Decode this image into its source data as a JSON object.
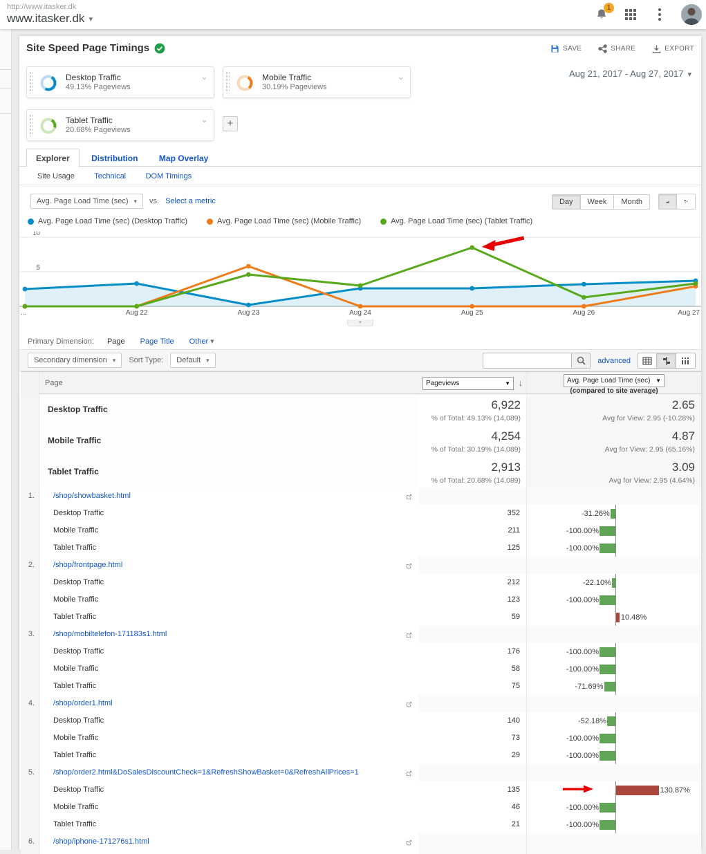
{
  "topbar": {
    "url": "http://www.itasker.dk",
    "account": "www.itasker.dk",
    "notification_count": "1"
  },
  "report": {
    "title": "Site Speed Page Timings",
    "actions": [
      "SAVE",
      "SHARE",
      "EXPORT"
    ],
    "date_range": "Aug 21, 2017 - Aug 27, 2017"
  },
  "segments": {
    "cards": [
      {
        "name": "Desktop Traffic",
        "subtitle": "49.13% Pageviews",
        "pct": 49.13,
        "color": "#058dc7",
        "track": "#b9dcef"
      },
      {
        "name": "Mobile Traffic",
        "subtitle": "30.19% Pageviews",
        "pct": 30.19,
        "color": "#ee7c1a",
        "track": "#f8d9ba"
      },
      {
        "name": "Tablet Traffic",
        "subtitle": "20.68% Pageviews",
        "pct": 20.68,
        "color": "#5aa81c",
        "track": "#cde7ba"
      }
    ],
    "add_label": "+"
  },
  "tabs": {
    "items": [
      {
        "label": "Explorer",
        "active": true
      },
      {
        "label": "Distribution"
      },
      {
        "label": "Map Overlay"
      }
    ]
  },
  "subtabs": {
    "items": [
      {
        "label": "Site Usage",
        "active": true
      },
      {
        "label": "Technical"
      },
      {
        "label": "DOM Timings"
      }
    ]
  },
  "metric_bar": {
    "metric": "Avg. Page Load Time (sec)",
    "vs": "vs.",
    "select_metric": "Select a metric",
    "granularity": [
      {
        "label": "Day",
        "active": true
      },
      {
        "label": "Week"
      },
      {
        "label": "Month"
      }
    ]
  },
  "legend": [
    {
      "label": "Avg. Page Load Time (sec) (Desktop Traffic)",
      "color": "#058dc7"
    },
    {
      "label": "Avg. Page Load Time (sec) (Mobile Traffic)",
      "color": "#ee7c1a"
    },
    {
      "label": "Avg. Page Load Time (sec) (Tablet Traffic)",
      "color": "#5aa81c"
    }
  ],
  "chart_data": {
    "type": "line",
    "x": [
      "Aug 21",
      "Aug 22",
      "Aug 23",
      "Aug 24",
      "Aug 25",
      "Aug 26",
      "Aug 27"
    ],
    "x_tick_labels": [
      "...",
      "Aug 22",
      "Aug 23",
      "Aug 24",
      "Aug 25",
      "Aug 26",
      "Aug 27"
    ],
    "ylim": [
      0,
      10
    ],
    "yticks": [
      5,
      10
    ],
    "series": [
      {
        "name": "Avg. Page Load Time (sec) (Desktop Traffic)",
        "color": "#058dc7",
        "area": true,
        "values": [
          2.5,
          3.3,
          0.2,
          2.6,
          2.6,
          3.2,
          3.7
        ]
      },
      {
        "name": "Avg. Page Load Time (sec) (Mobile Traffic)",
        "color": "#ee7c1a",
        "area": false,
        "values": [
          0,
          0,
          5.8,
          0,
          0,
          0,
          2.9
        ]
      },
      {
        "name": "Avg. Page Load Time (sec) (Tablet Traffic)",
        "color": "#5aa81c",
        "area": false,
        "values": [
          0,
          0,
          4.6,
          3.0,
          8.5,
          1.3,
          3.3
        ]
      }
    ],
    "annotation": {
      "type": "red-arrow",
      "target_series": "Tablet Traffic",
      "target_x": "Aug 25"
    }
  },
  "primary_dimension": {
    "label": "Primary Dimension:",
    "options": [
      {
        "label": "Page",
        "active": true
      },
      {
        "label": "Page Title"
      },
      {
        "label": "Other",
        "caret": true
      }
    ]
  },
  "toolbar": {
    "secondary_dimension": "Secondary dimension",
    "sort_type_label": "Sort Type:",
    "sort_type": "Default",
    "search_value": "",
    "advanced": "advanced"
  },
  "table": {
    "headers": {
      "page": "Page",
      "pageviews": "Pageviews",
      "metric": "Avg. Page Load Time (sec)",
      "metric_note": "(compared to site average)"
    },
    "summary_rows": [
      {
        "label": "Desktop Traffic",
        "pageviews": "6,922",
        "pageviews_note": "% of Total: 49.13% (14,089)",
        "metric": "2.65",
        "metric_note": "Avg for View: 2.95 (-10.28%)"
      },
      {
        "label": "Mobile Traffic",
        "pageviews": "4,254",
        "pageviews_note": "% of Total: 30.19% (14,089)",
        "metric": "4.87",
        "metric_note": "Avg for View: 2.95 (65.16%)"
      },
      {
        "label": "Tablet Traffic",
        "pageviews": "2,913",
        "pageviews_note": "% of Total: 20.68% (14,089)",
        "metric": "3.09",
        "metric_note": "Avg for View: 2.95 (4.64%)"
      }
    ],
    "groups": [
      {
        "index": "1.",
        "page": "/shop/showbasket.html",
        "rows": [
          {
            "segment": "Desktop Traffic",
            "pageviews": "352",
            "delta": "-31.26%"
          },
          {
            "segment": "Mobile Traffic",
            "pageviews": "211",
            "delta": "-100.00%"
          },
          {
            "segment": "Tablet Traffic",
            "pageviews": "125",
            "delta": "-100.00%"
          }
        ]
      },
      {
        "index": "2.",
        "page": "/shop/frontpage.html",
        "rows": [
          {
            "segment": "Desktop Traffic",
            "pageviews": "212",
            "delta": "-22.10%"
          },
          {
            "segment": "Mobile Traffic",
            "pageviews": "123",
            "delta": "-100.00%"
          },
          {
            "segment": "Tablet Traffic",
            "pageviews": "59",
            "delta": "10.48%"
          }
        ]
      },
      {
        "index": "3.",
        "page": "/shop/mobiltelefon-171183s1.html",
        "rows": [
          {
            "segment": "Desktop Traffic",
            "pageviews": "176",
            "delta": "-100.00%"
          },
          {
            "segment": "Mobile Traffic",
            "pageviews": "58",
            "delta": "-100.00%"
          },
          {
            "segment": "Tablet Traffic",
            "pageviews": "75",
            "delta": "-71.69%"
          }
        ]
      },
      {
        "index": "4.",
        "page": "/shop/order1.html",
        "rows": [
          {
            "segment": "Desktop Traffic",
            "pageviews": "140",
            "delta": "-52.18%"
          },
          {
            "segment": "Mobile Traffic",
            "pageviews": "73",
            "delta": "-100.00%"
          },
          {
            "segment": "Tablet Traffic",
            "pageviews": "29",
            "delta": "-100.00%"
          }
        ]
      },
      {
        "index": "5.",
        "page": "/shop/order2.html&DoSalesDiscountCheck=1&RefreshShowBasket=0&RefreshAllPrices=1",
        "rows": [
          {
            "segment": "Desktop Traffic",
            "pageviews": "135",
            "delta": "130.87%",
            "arrow": true
          },
          {
            "segment": "Mobile Traffic",
            "pageviews": "46",
            "delta": "-100.00%"
          },
          {
            "segment": "Tablet Traffic",
            "pageviews": "21",
            "delta": "-100.00%"
          }
        ]
      },
      {
        "index": "6.",
        "page": "/shop/iphone-171276s1.html",
        "rows": []
      }
    ]
  },
  "icons": {
    "caret_down": "▾",
    "sort_down": "↓",
    "chevron_down": "⌄",
    "collapse_caret": "▾"
  },
  "colors": {
    "negative_bar": "#61a656",
    "positive_bar": "#ab463c",
    "annotation_arrow": "#e60000",
    "link": "#1155cc"
  }
}
